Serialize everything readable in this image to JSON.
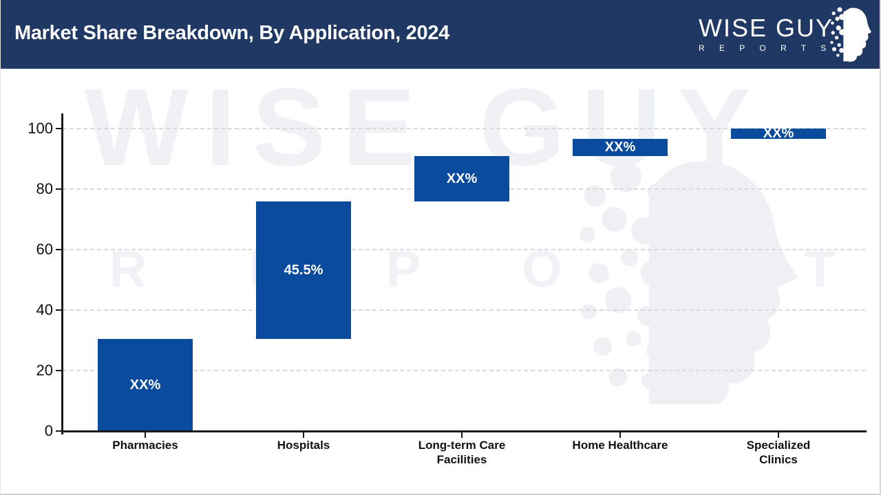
{
  "header": {
    "title": "Market Share Breakdown, By Application, 2024",
    "bg_color": "#1f3864",
    "logo": {
      "line1": "WISE GUY",
      "line2": "R E P O R T S"
    }
  },
  "watermark": {
    "line1": "WISE GUY",
    "line2": "R E P O R T S"
  },
  "colors": {
    "header_background": "#1f3864",
    "bar_fill": "#0a4b9e",
    "bar_label_text": "#ffffff",
    "axis": "#1a1a1a",
    "gridline": "#d9d9d9",
    "watermark": "#f0f1f4"
  },
  "chart_data": {
    "type": "bar",
    "subtype": "waterfall-floating-bars",
    "title": "Market Share Breakdown, By Application, 2024",
    "xlabel": "",
    "ylabel": "",
    "ylim": [
      0,
      100
    ],
    "yticks": [
      0,
      20,
      40,
      60,
      80,
      100
    ],
    "grid": "horizontal-dashed",
    "legend": "none",
    "categories": [
      "Pharmacies",
      "Hospitals",
      "Long-term Care\nFacilities",
      "Home Healthcare",
      "Specialized\nClinics"
    ],
    "segments": [
      {
        "category": "Pharmacies",
        "start": 0,
        "end": 30.4,
        "value": 30.4,
        "label": "XX%"
      },
      {
        "category": "Hospitals",
        "start": 30.4,
        "end": 75.9,
        "value": 45.5,
        "label": "45.5%"
      },
      {
        "category": "Long-term Care Facilities",
        "start": 75.9,
        "end": 90.9,
        "value": 15.0,
        "label": "XX%"
      },
      {
        "category": "Home Healthcare",
        "start": 90.9,
        "end": 96.6,
        "value": 5.7,
        "label": "XX%"
      },
      {
        "category": "Specialized Clinics",
        "start": 96.6,
        "end": 100,
        "value": 3.4,
        "label": "XX%"
      }
    ]
  }
}
